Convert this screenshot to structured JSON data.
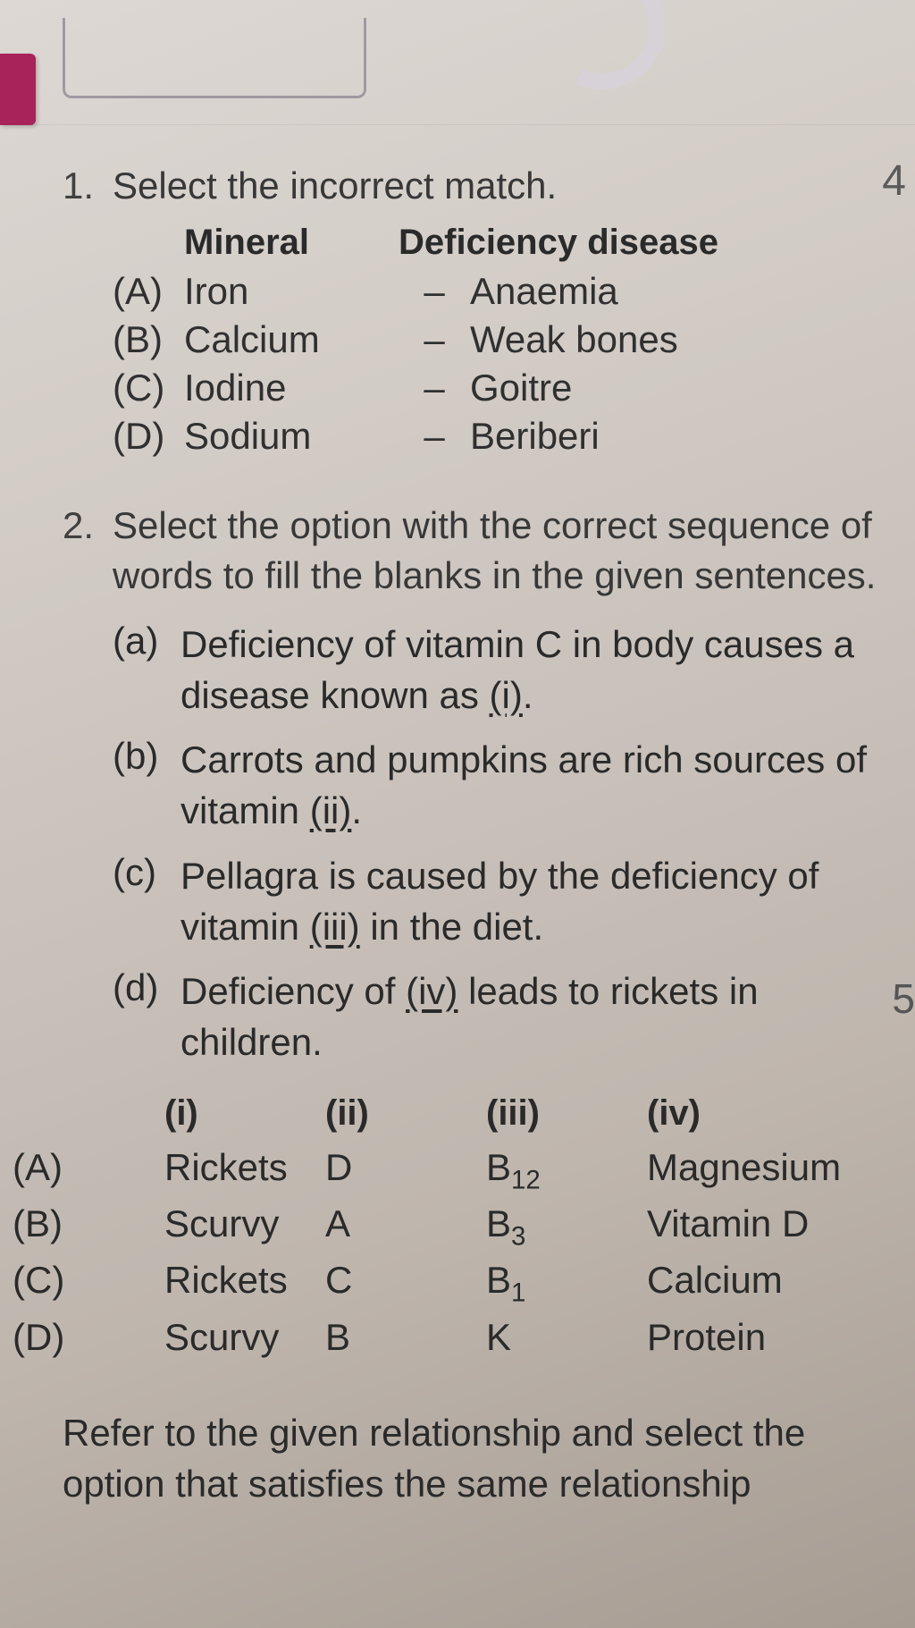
{
  "page": {
    "right_margin_number": "4",
    "right_edge_mark": "5"
  },
  "q1": {
    "number": "1.",
    "prompt": "Select the incorrect match.",
    "header_left": "Mineral",
    "header_right": "Deficiency disease",
    "rows": [
      {
        "label": "(A)",
        "mineral": "Iron",
        "dash": "–",
        "disease": "Anaemia"
      },
      {
        "label": "(B)",
        "mineral": "Calcium",
        "dash": "–",
        "disease": "Weak bones"
      },
      {
        "label": "(C)",
        "mineral": "Iodine",
        "dash": "–",
        "disease": "Goitre"
      },
      {
        "label": "(D)",
        "mineral": "Sodium",
        "dash": "–",
        "disease": "Beriberi"
      }
    ]
  },
  "q2": {
    "number": "2.",
    "prompt": "Select the option with the correct sequence of words to fill the blanks in the given sentences.",
    "subs": [
      {
        "label": "(a)",
        "pre": "Deficiency of vitamin C in body causes a disease known as ",
        "blank": "(i)",
        "post": "."
      },
      {
        "label": "(b)",
        "pre": "Carrots and pumpkins are rich sources of vitamin ",
        "blank": "(ii)",
        "post": "."
      },
      {
        "label": "(c)",
        "pre": "Pellagra is caused by the deficiency of vitamin ",
        "blank": "(iii)",
        "post": " in the diet."
      },
      {
        "label": "(d)",
        "pre": "Deficiency of ",
        "blank": "(iv)",
        "post": " leads to rickets in children."
      }
    ],
    "opt_header": {
      "i": "(i)",
      "ii": "(ii)",
      "iii": "(iii)",
      "iv": "(iv)"
    },
    "options": [
      {
        "label": "(A)",
        "i": "Rickets",
        "ii": "D",
        "iii_base": "B",
        "iii_sub": "12",
        "iv": "Magnesium"
      },
      {
        "label": "(B)",
        "i": "Scurvy",
        "ii": "A",
        "iii_base": "B",
        "iii_sub": "3",
        "iv": "Vitamin D"
      },
      {
        "label": "(C)",
        "i": "Rickets",
        "ii": "C",
        "iii_base": "B",
        "iii_sub": "1",
        "iv": "Calcium"
      },
      {
        "label": "(D)",
        "i": "Scurvy",
        "ii": "B",
        "iii_base": "K",
        "iii_sub": "",
        "iv": "Protein"
      }
    ]
  },
  "bottom": {
    "text": "Refer to the given relationship and select the option that satisfies the same relationship"
  },
  "colors": {
    "text": "#2a2a2a",
    "magenta": "#a8235a",
    "frame": "#a099a2",
    "bg_light": "#ddd8d4",
    "bg_dark": "#a69c92"
  }
}
